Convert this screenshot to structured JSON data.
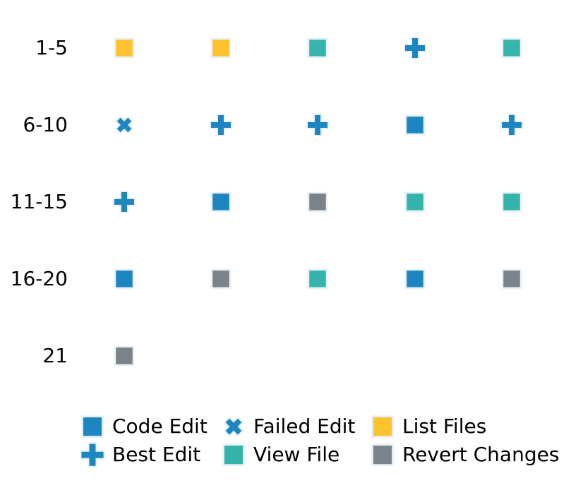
{
  "colors": {
    "blue": "#1d86c0",
    "teal": "#35b4ab",
    "yellow": "#fdc32d",
    "gray": "#7a828a",
    "marker_edge": "#e7f0f7",
    "text": "#000000",
    "background": "#ffffff"
  },
  "chart_data": {
    "type": "scatter",
    "title": "",
    "xlabel": "",
    "ylabel": "",
    "grid": false,
    "legend_position": "bottom",
    "rows": [
      {
        "label": "1-5",
        "actions": [
          "List Files",
          "List Files",
          "View File",
          "Best Edit",
          "View File"
        ]
      },
      {
        "label": "6-10",
        "actions": [
          "Failed Edit",
          "Best Edit",
          "Best Edit",
          "Code Edit",
          "Best Edit"
        ]
      },
      {
        "label": "11-15",
        "actions": [
          "Best Edit",
          "Code Edit",
          "Revert Changes",
          "View File",
          "View File"
        ]
      },
      {
        "label": "16-20",
        "actions": [
          "Code Edit",
          "Revert Changes",
          "View File",
          "Code Edit",
          "Revert Changes"
        ]
      },
      {
        "label": "21",
        "actions": [
          "Revert Changes"
        ]
      }
    ],
    "marker_map": {
      "Code Edit": {
        "marker": "square",
        "color": "blue"
      },
      "Failed Edit": {
        "marker": "x",
        "color": "blue"
      },
      "List Files": {
        "marker": "square",
        "color": "yellow"
      },
      "Best Edit": {
        "marker": "plus",
        "color": "blue"
      },
      "View File": {
        "marker": "square",
        "color": "teal"
      },
      "Revert Changes": {
        "marker": "square",
        "color": "gray"
      }
    },
    "legend": [
      {
        "label": "Code Edit",
        "marker": "square",
        "color": "blue"
      },
      {
        "label": "Failed Edit",
        "marker": "x",
        "color": "blue"
      },
      {
        "label": "List Files",
        "marker": "square",
        "color": "yellow"
      },
      {
        "label": "Best Edit",
        "marker": "plus",
        "color": "blue"
      },
      {
        "label": "View File",
        "marker": "square",
        "color": "teal"
      },
      {
        "label": "Revert Changes",
        "marker": "square",
        "color": "gray"
      }
    ]
  }
}
